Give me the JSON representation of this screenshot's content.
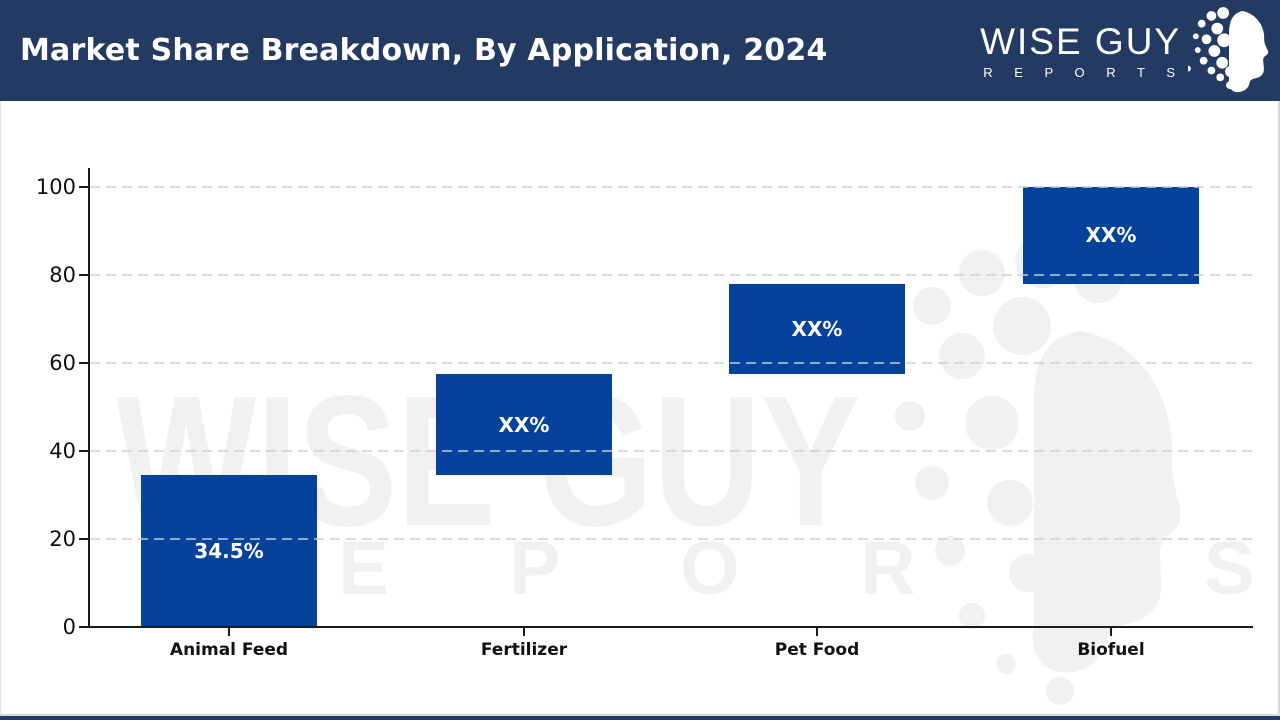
{
  "header": {
    "title": "Market Share Breakdown, By Application, 2024",
    "logo": {
      "line1": "WISE GUY",
      "line2": "R E P O R T S"
    }
  },
  "watermark": {
    "line1": "WISE GUY",
    "line2": "R E P O R T S"
  },
  "chart_data": {
    "type": "bar",
    "subtype": "waterfall",
    "title": "Market Share Breakdown, By Application, 2024",
    "xlabel": "",
    "ylabel": "",
    "categories": [
      "Animal Feed",
      "Fertilizer",
      "Pet Food",
      "Biofuel"
    ],
    "segments": [
      {
        "category": "Animal Feed",
        "start": 0,
        "end": 34.5,
        "label": "34.5%"
      },
      {
        "category": "Fertilizer",
        "start": 34.5,
        "end": 57.5,
        "label": "XX%"
      },
      {
        "category": "Pet Food",
        "start": 57.5,
        "end": 78,
        "label": "XX%"
      },
      {
        "category": "Biofuel",
        "start": 78,
        "end": 100,
        "label": "XX%"
      }
    ],
    "yticks": [
      0,
      20,
      40,
      60,
      80,
      100
    ],
    "ylim": [
      0,
      104
    ],
    "grid": "horizontal-dashed",
    "legend_position": "none",
    "bar_color": "#05429b",
    "bar_label_color": "#ffffff"
  },
  "colors": {
    "header_bg": "#233a63",
    "bar": "#05429b",
    "axis": "#1a1a1a",
    "grid": "#cdcdcd",
    "watermark": "#f1f1f4"
  }
}
